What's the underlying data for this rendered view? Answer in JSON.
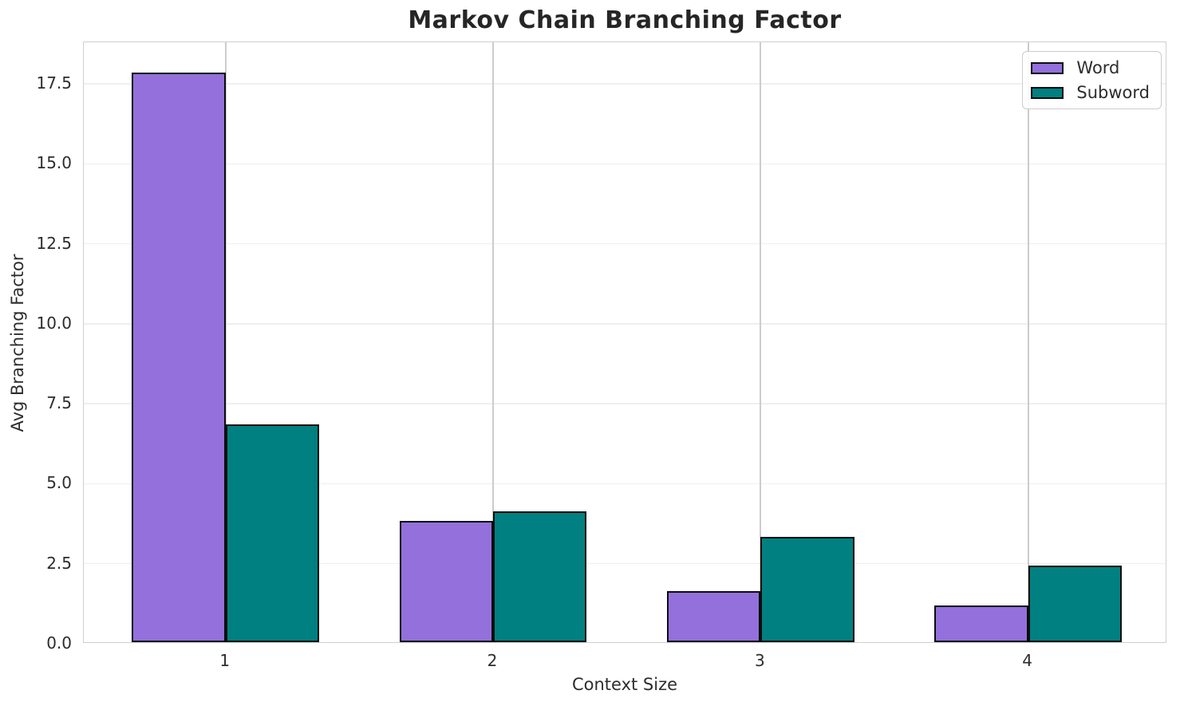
{
  "chart_data": {
    "type": "bar",
    "title": "Markov Chain Branching Factor",
    "xlabel": "Context Size",
    "ylabel": "Avg Branching Factor",
    "categories": [
      "1",
      "2",
      "3",
      "4"
    ],
    "series": [
      {
        "name": "Word",
        "color": "#9370db",
        "values": [
          17.8,
          3.8,
          1.6,
          1.15
        ]
      },
      {
        "name": "Subword",
        "color": "#008080",
        "values": [
          6.8,
          4.1,
          3.3,
          2.4
        ]
      }
    ],
    "bar_width": 0.35,
    "bar_edge_color": "#0d0d0d",
    "xlim": [
      0.47,
      4.52
    ],
    "ylim": [
      0,
      18.8
    ],
    "yticks": [
      0.0,
      2.5,
      5.0,
      7.5,
      10.0,
      12.5,
      15.0,
      17.5
    ],
    "ytick_labels": [
      "0.0",
      "2.5",
      "5.0",
      "7.5",
      "10.0",
      "12.5",
      "15.0",
      "17.5"
    ],
    "grid": true,
    "grid_color_horizontal": "#efefef",
    "grid_color_vertical": "#cccccc",
    "spine_color": "#d0d0d0",
    "text_color": "#2d2d2d",
    "title_color": "#262626",
    "legend": {
      "position": "upper right",
      "entries": [
        "Word",
        "Subword"
      ]
    }
  }
}
